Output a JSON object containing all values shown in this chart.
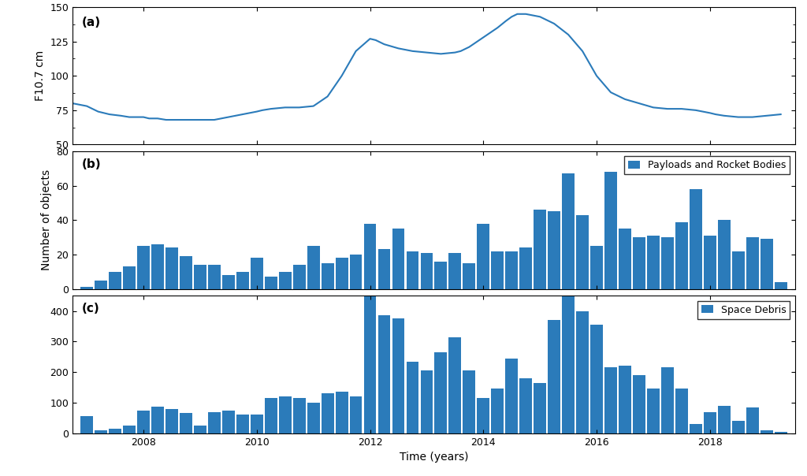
{
  "title_a": "(a)",
  "title_b": "(b)",
  "title_c": "(c)",
  "ylabel_a": "F10.7 cm",
  "ylabel_bc": "Number of objects",
  "xlabel": "Time (years)",
  "legend_b": "Payloads and Rocket Bodies",
  "legend_c": "Space Debris",
  "bar_color": "#2b7bba",
  "line_color": "#2b7bba",
  "ylim_a": [
    50,
    150
  ],
  "ylim_b": [
    0,
    80
  ],
  "ylim_c": [
    0,
    450
  ],
  "yticks_a": [
    50,
    75,
    100,
    125,
    150
  ],
  "yticks_b": [
    0,
    20,
    40,
    60,
    80
  ],
  "yticks_c": [
    0,
    100,
    200,
    300,
    400
  ],
  "xmin": 2006.75,
  "xmax": 2019.5,
  "xtick_years": [
    2008,
    2010,
    2012,
    2014,
    2016,
    2018
  ],
  "f107_x": [
    2006.75,
    2007.0,
    2007.1,
    2007.2,
    2007.4,
    2007.6,
    2007.75,
    2007.9,
    2008.0,
    2008.1,
    2008.25,
    2008.4,
    2008.6,
    2008.75,
    2008.9,
    2009.0,
    2009.1,
    2009.25,
    2009.5,
    2009.75,
    2010.0,
    2010.1,
    2010.25,
    2010.5,
    2010.6,
    2010.75,
    2011.0,
    2011.25,
    2011.5,
    2011.75,
    2012.0,
    2012.1,
    2012.25,
    2012.5,
    2012.75,
    2013.0,
    2013.25,
    2013.5,
    2013.6,
    2013.75,
    2014.0,
    2014.25,
    2014.4,
    2014.5,
    2014.6,
    2014.75,
    2015.0,
    2015.1,
    2015.25,
    2015.5,
    2015.75,
    2016.0,
    2016.25,
    2016.5,
    2016.75,
    2017.0,
    2017.25,
    2017.5,
    2017.75,
    2018.0,
    2018.1,
    2018.25,
    2018.5,
    2018.75,
    2019.0,
    2019.25
  ],
  "f107_y": [
    80,
    78,
    76,
    74,
    72,
    71,
    70,
    70,
    70,
    69,
    69,
    68,
    68,
    68,
    68,
    68,
    68,
    68,
    70,
    72,
    74,
    75,
    76,
    77,
    77,
    77,
    78,
    85,
    100,
    118,
    127,
    126,
    123,
    120,
    118,
    117,
    116,
    117,
    118,
    121,
    128,
    135,
    140,
    143,
    145,
    145,
    143,
    141,
    138,
    130,
    118,
    100,
    88,
    83,
    80,
    77,
    76,
    76,
    75,
    73,
    72,
    71,
    70,
    70,
    71,
    72
  ],
  "bar_b_x": [
    2007.0,
    2007.25,
    2007.5,
    2007.75,
    2008.0,
    2008.25,
    2008.5,
    2008.75,
    2009.0,
    2009.25,
    2009.5,
    2009.75,
    2010.0,
    2010.25,
    2010.5,
    2010.75,
    2011.0,
    2011.25,
    2011.5,
    2011.75,
    2012.0,
    2012.25,
    2012.5,
    2012.75,
    2013.0,
    2013.25,
    2013.5,
    2013.75,
    2014.0,
    2014.25,
    2014.5,
    2014.75,
    2015.0,
    2015.25,
    2015.5,
    2015.75,
    2016.0,
    2016.25,
    2016.5,
    2016.75,
    2017.0,
    2017.25,
    2017.5,
    2017.75,
    2018.0,
    2018.25,
    2018.5,
    2018.75,
    2019.0,
    2019.25
  ],
  "bar_b_h": [
    1,
    5,
    10,
    13,
    25,
    26,
    24,
    19,
    14,
    14,
    8,
    10,
    18,
    7,
    10,
    14,
    25,
    15,
    18,
    20,
    38,
    23,
    35,
    22,
    21,
    16,
    21,
    15,
    38,
    22,
    22,
    24,
    46,
    45,
    67,
    43,
    25,
    68,
    35,
    30,
    31,
    30,
    39,
    58,
    31,
    40,
    22,
    30,
    29,
    4
  ],
  "bar_c_x": [
    2007.0,
    2007.25,
    2007.5,
    2007.75,
    2008.0,
    2008.25,
    2008.5,
    2008.75,
    2009.0,
    2009.25,
    2009.5,
    2009.75,
    2010.0,
    2010.25,
    2010.5,
    2010.75,
    2011.0,
    2011.25,
    2011.5,
    2011.75,
    2012.0,
    2012.25,
    2012.5,
    2012.75,
    2013.0,
    2013.25,
    2013.5,
    2013.75,
    2014.0,
    2014.25,
    2014.5,
    2014.75,
    2015.0,
    2015.25,
    2015.5,
    2015.75,
    2016.0,
    2016.25,
    2016.5,
    2016.75,
    2017.0,
    2017.25,
    2017.5,
    2017.75,
    2018.0,
    2018.25,
    2018.5,
    2018.75,
    2019.0,
    2019.25
  ],
  "bar_c_h": [
    55,
    10,
    15,
    25,
    75,
    88,
    80,
    65,
    25,
    70,
    75,
    60,
    60,
    115,
    120,
    115,
    100,
    130,
    135,
    120,
    470,
    385,
    375,
    235,
    205,
    265,
    315,
    205,
    115,
    145,
    245,
    180,
    165,
    370,
    450,
    400,
    355,
    215,
    220,
    190,
    145,
    215,
    145,
    30,
    70,
    90,
    40,
    85,
    10,
    5
  ]
}
